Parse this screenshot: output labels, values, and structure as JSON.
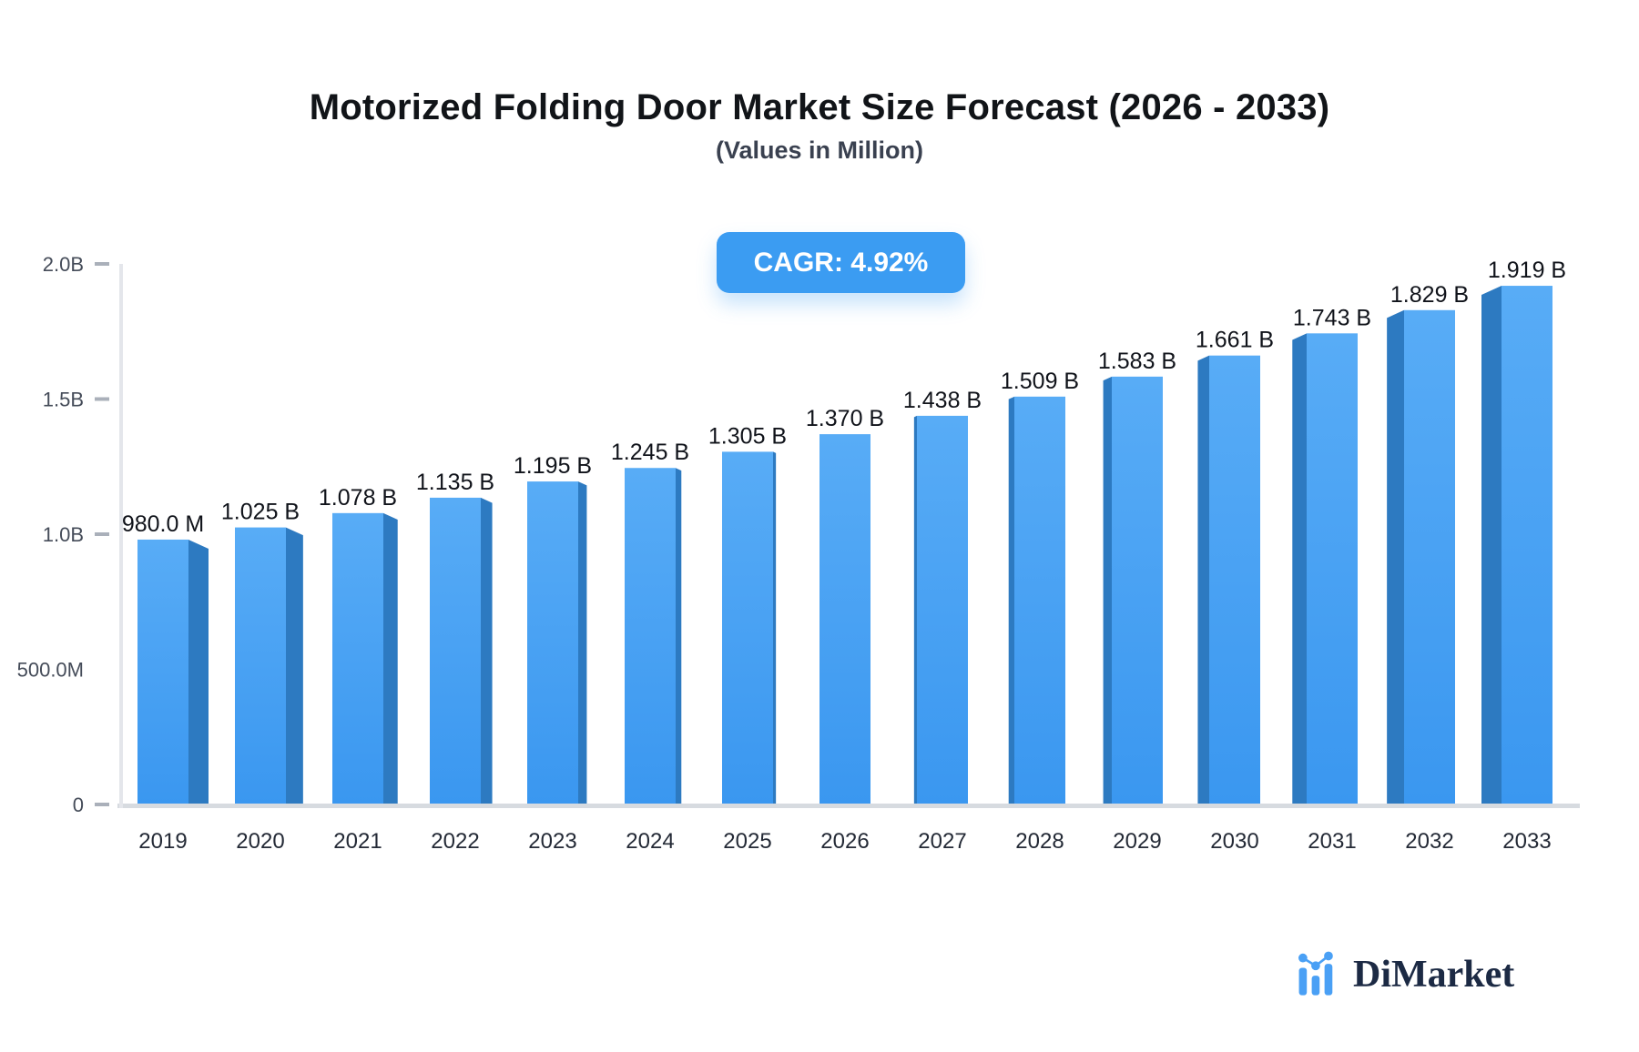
{
  "title": "Motorized Folding Door Market Size Forecast (2026 - 2033)",
  "subtitle": "(Values in Million)",
  "badge": {
    "label": "CAGR: 4.92%"
  },
  "brand": {
    "name": "DiMarket"
  },
  "colors": {
    "accent": "#3b9cf2",
    "bar_face_top": "#58acf6",
    "bar_face_bottom": "#3a97f0",
    "bar_side": "#2d7ac1",
    "baseline": "#d7dbe0",
    "axis_line": "#e4e6eb",
    "tick": "#aab0ba",
    "axis_text": "#454c59",
    "year_text": "#242a36",
    "value_text": "#10131a",
    "brand_navy": "#1c2a44",
    "brand_blue": "#4aa0f5"
  },
  "chart_data": {
    "type": "bar",
    "title": "Motorized Folding Door Market Size Forecast (2026 - 2033)",
    "subtitle": "(Values in Million)",
    "xlabel": "",
    "ylabel": "",
    "unit": "billions USD",
    "ylim": [
      0,
      2.0
    ],
    "grid": false,
    "legend": "none",
    "categories": [
      "2019",
      "2020",
      "2021",
      "2022",
      "2023",
      "2024",
      "2025",
      "2026",
      "2027",
      "2028",
      "2029",
      "2030",
      "2031",
      "2032",
      "2033"
    ],
    "values": [
      0.98,
      1.025,
      1.078,
      1.135,
      1.195,
      1.245,
      1.305,
      1.37,
      1.438,
      1.509,
      1.583,
      1.661,
      1.743,
      1.829,
      1.919
    ],
    "value_labels": [
      "980.0 M",
      "1.025 B",
      "1.078 B",
      "1.135 B",
      "1.195 B",
      "1.245 B",
      "1.305 B",
      "1.370 B",
      "1.438 B",
      "1.509 B",
      "1.583 B",
      "1.661 B",
      "1.743 B",
      "1.829 B",
      "1.919 B"
    ],
    "y_ticks": [
      {
        "label": "2.0B",
        "value": 2.0,
        "dash": true
      },
      {
        "label": "1.5B",
        "value": 1.5,
        "dash": true
      },
      {
        "label": "1.0B",
        "value": 1.0,
        "dash": true
      },
      {
        "label": "500.0M",
        "value": 0.5,
        "dash": false
      },
      {
        "label": "0",
        "value": 0.0,
        "dash": true
      }
    ],
    "cagr": "CAGR: 4.92%"
  }
}
